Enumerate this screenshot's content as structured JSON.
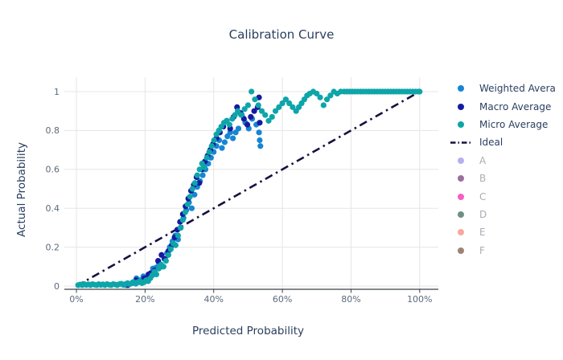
{
  "title": "Calibration Curve",
  "axes": {
    "x_label": "Predicted Probability",
    "y_label": "Actual Probability",
    "x_ticks": [
      "0%",
      "20%",
      "40%",
      "60%",
      "80%",
      "100%"
    ],
    "y_ticks": [
      "0",
      "0.2",
      "0.4",
      "0.6",
      "0.8",
      "1"
    ]
  },
  "style": {
    "background": "#ffffff",
    "grid_color": "#e5e5e5",
    "axis_color": "#3c4043",
    "tick_color": "#5b6b7c",
    "title_color": "#2a3f5f",
    "inactive_label_color": "#a9aeb4"
  },
  "legend": {
    "items": [
      {
        "label": "Weighted Avera",
        "color": "#1785d2",
        "type": "marker",
        "active": true
      },
      {
        "label": "Macro Average",
        "color": "#161aa0",
        "type": "marker",
        "active": true
      },
      {
        "label": "Micro Average",
        "color": "#0ea5a9",
        "type": "marker",
        "active": true
      },
      {
        "label": "Ideal",
        "color": "#18103f",
        "type": "dashdot-line",
        "active": true
      },
      {
        "label": "A",
        "color": "#b6b0f1",
        "type": "marker",
        "active": false
      },
      {
        "label": "B",
        "color": "#9b6fa0",
        "type": "marker",
        "active": false
      },
      {
        "label": "C",
        "color": "#f65fc5",
        "type": "marker",
        "active": false
      },
      {
        "label": "D",
        "color": "#6e9080",
        "type": "marker",
        "active": false
      },
      {
        "label": "E",
        "color": "#f9a89b",
        "type": "marker",
        "active": false
      },
      {
        "label": "F",
        "color": "#9e8274",
        "type": "marker",
        "active": false
      }
    ]
  },
  "chart_data": {
    "type": "scatter",
    "title": "Calibration Curve",
    "xlabel": "Predicted Probability",
    "ylabel": "Actual Probability",
    "xlim": [
      -3.5,
      105.4
    ],
    "ylim": [
      -0.02,
      1.07
    ],
    "x_tick_values": [
      0,
      20,
      40,
      60,
      80,
      100
    ],
    "y_tick_values": [
      0,
      0.2,
      0.4,
      0.6,
      0.8,
      1
    ],
    "grid": true,
    "legend_position": "right",
    "series": [
      {
        "name": "Weighted Average",
        "color": "#1785d2",
        "marker": "circle",
        "points": [
          [
            14.5,
            0.005
          ],
          [
            15.5,
            0.01
          ],
          [
            16.5,
            0.02
          ],
          [
            17.5,
            0.04
          ],
          [
            18.5,
            0.03
          ],
          [
            19.5,
            0.05
          ],
          [
            20.5,
            0.04
          ],
          [
            21.5,
            0.06
          ],
          [
            22.3,
            0.09
          ],
          [
            23.2,
            0.095
          ],
          [
            24,
            0.12
          ],
          [
            24.8,
            0.1
          ],
          [
            25.6,
            0.14
          ],
          [
            26.4,
            0.17
          ],
          [
            27.2,
            0.2
          ],
          [
            28,
            0.23
          ],
          [
            28.8,
            0.26
          ],
          [
            29.6,
            0.24
          ],
          [
            30.4,
            0.3
          ],
          [
            31.2,
            0.35
          ],
          [
            32,
            0.39
          ],
          [
            32.8,
            0.43
          ],
          [
            33.6,
            0.4
          ],
          [
            34.4,
            0.47
          ],
          [
            35.2,
            0.51
          ],
          [
            36,
            0.54
          ],
          [
            36.8,
            0.57
          ],
          [
            37.6,
            0.6
          ],
          [
            38.4,
            0.63
          ],
          [
            39.2,
            0.66
          ],
          [
            40,
            0.69
          ],
          [
            40.8,
            0.72
          ],
          [
            41.6,
            0.75
          ],
          [
            42.4,
            0.71
          ],
          [
            43.2,
            0.74
          ],
          [
            44,
            0.77
          ],
          [
            44.8,
            0.79
          ],
          [
            45.6,
            0.76
          ],
          [
            46.4,
            0.79
          ],
          [
            47.2,
            0.81
          ],
          [
            48.2,
            0.88
          ],
          [
            49.2,
            0.84
          ],
          [
            50.2,
            0.81
          ],
          [
            51.2,
            0.86
          ],
          [
            52.4,
            0.83
          ],
          [
            53.2,
            0.79
          ],
          [
            53.4,
            0.75
          ],
          [
            53.6,
            0.72
          ]
        ]
      },
      {
        "name": "Macro Average",
        "color": "#161aa0",
        "marker": "circle",
        "points": [
          [
            15,
            0.005
          ],
          [
            16.2,
            0.015
          ],
          [
            17.4,
            0.03
          ],
          [
            18.6,
            0.02
          ],
          [
            19.8,
            0.04
          ],
          [
            21,
            0.06
          ],
          [
            21.6,
            0.066
          ],
          [
            22.8,
            0.08
          ],
          [
            23.8,
            0.13
          ],
          [
            24.8,
            0.16
          ],
          [
            25.8,
            0.14
          ],
          [
            26.8,
            0.18
          ],
          [
            27.8,
            0.21
          ],
          [
            28.6,
            0.25
          ],
          [
            29.4,
            0.29
          ],
          [
            30.2,
            0.33
          ],
          [
            31,
            0.37
          ],
          [
            31.8,
            0.41
          ],
          [
            32.6,
            0.45
          ],
          [
            33.4,
            0.49
          ],
          [
            34.2,
            0.52
          ],
          [
            35,
            0.56
          ],
          [
            35.8,
            0.53
          ],
          [
            36.6,
            0.6
          ],
          [
            37.4,
            0.64
          ],
          [
            38.2,
            0.67
          ],
          [
            39,
            0.7
          ],
          [
            39.8,
            0.73
          ],
          [
            40.8,
            0.76
          ],
          [
            41.8,
            0.79
          ],
          [
            42.8,
            0.82
          ],
          [
            43.8,
            0.85
          ],
          [
            44.8,
            0.81
          ],
          [
            45.8,
            0.87
          ],
          [
            46.8,
            0.92
          ],
          [
            47.8,
            0.89
          ],
          [
            48.8,
            0.86
          ],
          [
            49.8,
            0.83
          ],
          [
            50.8,
            0.87
          ],
          [
            51.8,
            0.9
          ],
          [
            52.8,
            0.92
          ],
          [
            53.2,
            0.97
          ],
          [
            53.4,
            0.84
          ]
        ]
      },
      {
        "name": "Micro Average",
        "color": "#0ea5a9",
        "marker": "circle",
        "points": [
          [
            0.5,
            0.005
          ],
          [
            1.1,
            0.008
          ],
          [
            1.7,
            0.005
          ],
          [
            2.3,
            0.01
          ],
          [
            2.9,
            0.006
          ],
          [
            3.5,
            0.009
          ],
          [
            4.1,
            0.005
          ],
          [
            4.7,
            0.01
          ],
          [
            5.3,
            0.007
          ],
          [
            5.9,
            0.005
          ],
          [
            6.5,
            0.01
          ],
          [
            7.1,
            0.006
          ],
          [
            7.7,
            0.009
          ],
          [
            8.3,
            0.005
          ],
          [
            8.9,
            0.01
          ],
          [
            9.5,
            0.007
          ],
          [
            10.1,
            0.005
          ],
          [
            10.7,
            0.01
          ],
          [
            11.3,
            0.008
          ],
          [
            11.9,
            0.005
          ],
          [
            12.5,
            0.01
          ],
          [
            13.1,
            0.012
          ],
          [
            13.7,
            0.006
          ],
          [
            14.3,
            0.01
          ],
          [
            14.9,
            0.015
          ],
          [
            15.5,
            0.01
          ],
          [
            16.1,
            0.015
          ],
          [
            16.7,
            0.02
          ],
          [
            17.3,
            0.012
          ],
          [
            17.9,
            0.02
          ],
          [
            18.5,
            0.025
          ],
          [
            19.1,
            0.015
          ],
          [
            19.7,
            0.02
          ],
          [
            20.3,
            0.03
          ],
          [
            20.9,
            0.025
          ],
          [
            21.5,
            0.04
          ],
          [
            22.1,
            0.055
          ],
          [
            22.7,
            0.074
          ],
          [
            23.3,
            0.06
          ],
          [
            24,
            0.09
          ],
          [
            24.7,
            0.11
          ],
          [
            25.4,
            0.1
          ],
          [
            26.1,
            0.13
          ],
          [
            26.8,
            0.16
          ],
          [
            27.5,
            0.19
          ],
          [
            28.2,
            0.22
          ],
          [
            28.9,
            0.21
          ],
          [
            29.6,
            0.26
          ],
          [
            30.3,
            0.3
          ],
          [
            31,
            0.34
          ],
          [
            31.7,
            0.38
          ],
          [
            32.4,
            0.42
          ],
          [
            33.1,
            0.46
          ],
          [
            33.8,
            0.5
          ],
          [
            34.5,
            0.53
          ],
          [
            35.2,
            0.57
          ],
          [
            35.9,
            0.6
          ],
          [
            36.6,
            0.63
          ],
          [
            37.3,
            0.61
          ],
          [
            38,
            0.66
          ],
          [
            38.7,
            0.69
          ],
          [
            39.4,
            0.72
          ],
          [
            40.1,
            0.75
          ],
          [
            40.8,
            0.78
          ],
          [
            41.5,
            0.8
          ],
          [
            42.2,
            0.82
          ],
          [
            43,
            0.84
          ],
          [
            43.8,
            0.85
          ],
          [
            44.6,
            0.83
          ],
          [
            45.4,
            0.86
          ],
          [
            46.2,
            0.88
          ],
          [
            47,
            0.9
          ],
          [
            48,
            0.88
          ],
          [
            49,
            0.91
          ],
          [
            50,
            0.93
          ],
          [
            51,
            1.0
          ],
          [
            52,
            0.96
          ],
          [
            53,
            0.93
          ],
          [
            54,
            0.9
          ],
          [
            55,
            0.88
          ],
          [
            56,
            0.85
          ],
          [
            57,
            0.87
          ],
          [
            58,
            0.9
          ],
          [
            59,
            0.92
          ],
          [
            60,
            0.94
          ],
          [
            61,
            0.96
          ],
          [
            62,
            0.94
          ],
          [
            63,
            0.92
          ],
          [
            64,
            0.9
          ],
          [
            64.8,
            0.92
          ],
          [
            65.6,
            0.94
          ],
          [
            66.4,
            0.96
          ],
          [
            67.2,
            0.98
          ],
          [
            68,
            0.99
          ],
          [
            69,
            1.0
          ],
          [
            70,
            0.99
          ],
          [
            71,
            0.97
          ],
          [
            72,
            0.93
          ],
          [
            73,
            0.96
          ],
          [
            74,
            0.98
          ],
          [
            75,
            1.0
          ],
          [
            76,
            0.99
          ],
          [
            77,
            1.0
          ],
          [
            78,
            1
          ],
          [
            78.8,
            1
          ],
          [
            79.6,
            1
          ],
          [
            80.4,
            1
          ],
          [
            81.2,
            1
          ],
          [
            82,
            1
          ],
          [
            82.8,
            1
          ],
          [
            83.6,
            1
          ],
          [
            84.4,
            1
          ],
          [
            85.2,
            1
          ],
          [
            86,
            1
          ],
          [
            86.8,
            1
          ],
          [
            87.6,
            1
          ],
          [
            88.4,
            1
          ],
          [
            89.2,
            1
          ],
          [
            90,
            1
          ],
          [
            90.8,
            1
          ],
          [
            91.6,
            1
          ],
          [
            92.4,
            1
          ],
          [
            93.2,
            1
          ],
          [
            94,
            1
          ],
          [
            94.8,
            1
          ],
          [
            95.6,
            1
          ],
          [
            96.4,
            1
          ],
          [
            97.2,
            1
          ],
          [
            98,
            1
          ],
          [
            98.8,
            1
          ],
          [
            99.6,
            1
          ],
          [
            100,
            1
          ]
        ]
      },
      {
        "name": "Ideal",
        "color": "#18103f",
        "type": "line",
        "dash": "dashdot",
        "points": [
          [
            0,
            0
          ],
          [
            100,
            1
          ]
        ]
      }
    ]
  }
}
